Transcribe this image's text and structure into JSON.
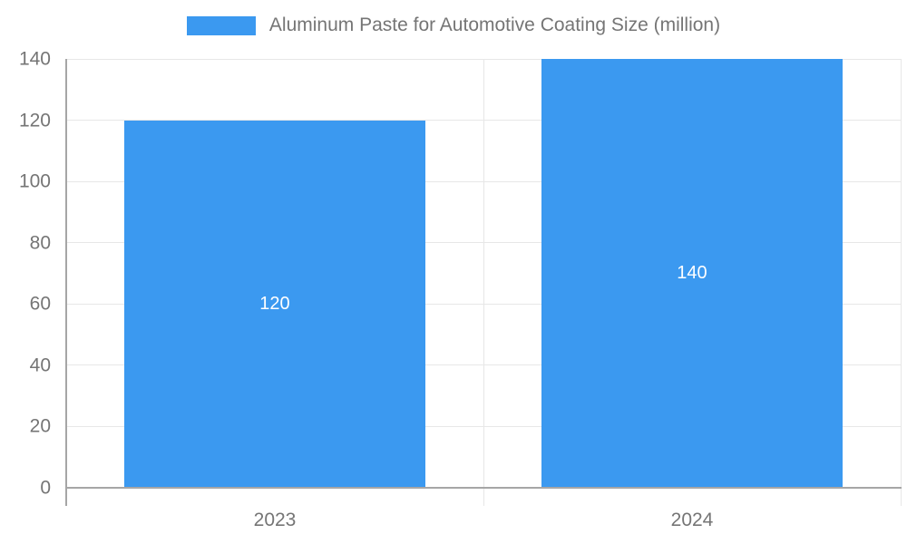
{
  "chart_data": {
    "type": "bar",
    "title": "Aluminum Paste for Automotive Coating Size (million)",
    "categories": [
      "2023",
      "2024"
    ],
    "series": [
      {
        "name": "Aluminum Paste for Automotive Coating Size (million)",
        "values": [
          120,
          140
        ]
      }
    ],
    "data_labels": [
      "120",
      "140"
    ],
    "xlabel": "",
    "ylabel": "",
    "ylim": [
      0,
      140
    ],
    "yticks": [
      0,
      20,
      40,
      60,
      80,
      100,
      120,
      140
    ],
    "grid": true,
    "legend_position": "top"
  },
  "colors": {
    "bar": "#3B99F0",
    "data_label": "#FFFFFF",
    "axis_label": "#757575",
    "gridline": "#E7E7E7",
    "axis_line": "#A6A6A6",
    "background": "#FFFFFF"
  }
}
